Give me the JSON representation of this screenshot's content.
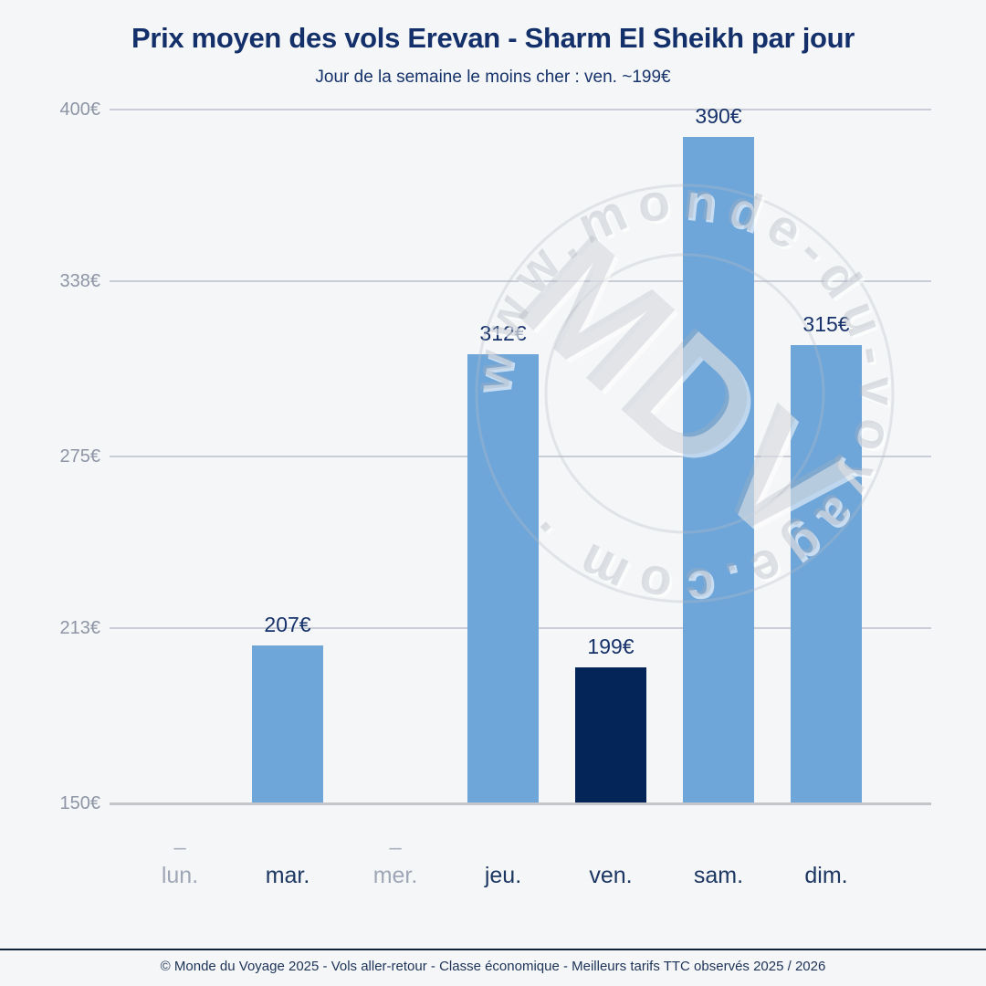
{
  "page": {
    "background": "#f5f6f8"
  },
  "header": {
    "title": "Prix moyen des vols Erevan - Sharm El Sheikh par jour",
    "subtitle": "Jour de la semaine le moins cher : ven. ~199€"
  },
  "chart_data": {
    "type": "bar",
    "title": "Prix moyen des vols Erevan - Sharm El Sheikh par jour",
    "subtitle": "Jour de la semaine le moins cher : ven. ~199€",
    "categories": [
      "lun.",
      "mar.",
      "mer.",
      "jeu.",
      "ven.",
      "sam.",
      "dim."
    ],
    "values": [
      null,
      207,
      null,
      312,
      199,
      390,
      315
    ],
    "value_label_suffix": "€",
    "no_data_marker": "–",
    "highlight_index": 4,
    "highlight_meaning": "jour le moins cher",
    "y_ticks": [
      400,
      338,
      275,
      213,
      150
    ],
    "y_tick_suffix": "€",
    "ylim": [
      150,
      400
    ],
    "grid": true,
    "legend": "none",
    "xlabel": "",
    "ylabel": "",
    "bar_color": "#6FA6D9",
    "highlight_color": "#042558",
    "value_label_color": "#17326B",
    "axis_tick_color": "#8D95A5",
    "day_active_color": "#1D3763",
    "day_inactive_color": "#9FA7B6"
  },
  "watermark": {
    "circle_text": "www.monde-du-voyage.com ·",
    "center_text": "MDV"
  },
  "footer": {
    "text": "© Monde du Voyage 2025 - Vols aller-retour - Classe économique - Meilleurs tarifs TTC observés 2025 / 2026"
  }
}
